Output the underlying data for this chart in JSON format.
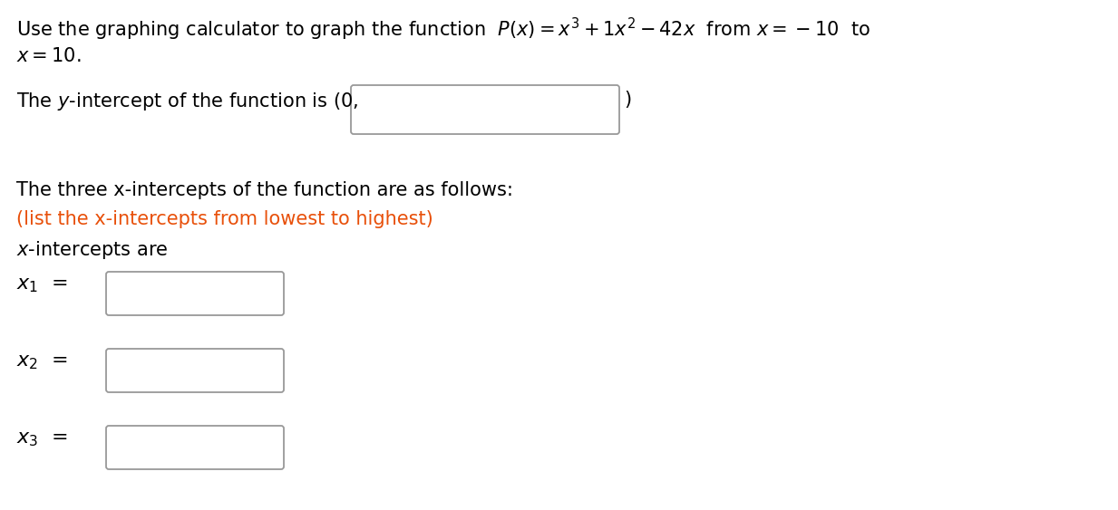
{
  "background_color": "#ffffff",
  "text_color": "#000000",
  "orange_color": "#E8500A",
  "box_edge_color": "#999999",
  "font_size": 15,
  "math_font_size": 15,
  "line1": "Use the graphing calculator to graph the function  $P(x) = x^3 + 1x^2 - 42x$  from $x = -10$  to",
  "line2": "$x = 10$.",
  "y_intercept_text": "The $y$-intercept of the function is (0,",
  "y_intercept_close": ")",
  "three_x_text": "The three x-intercepts of the function are as follows:",
  "orange_text": "(list the x-intercepts from lowest to highest)",
  "x_intercepts_are": "$x$-intercepts are",
  "x1_label": "$x_1$  =",
  "x2_label": "$x_2$  =",
  "x3_label": "$x_3$  ="
}
